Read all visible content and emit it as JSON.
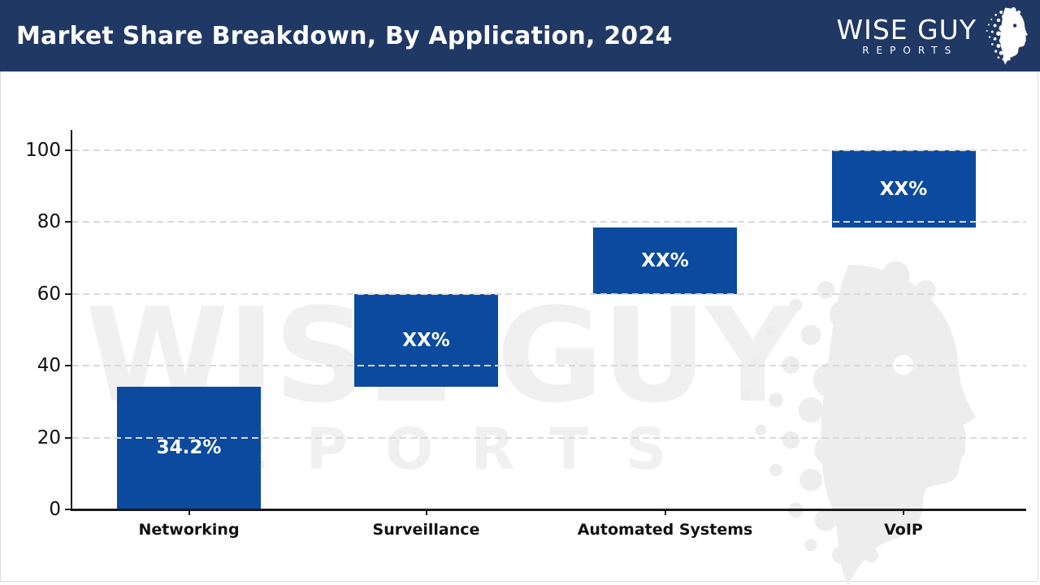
{
  "header": {
    "title": "Market Share Breakdown, By Application, 2024",
    "logo": {
      "line1": "WISE GUY",
      "line2": "REPORTS"
    }
  },
  "watermark": {
    "line1": "WISE GUY",
    "line2": "REPORTS"
  },
  "chart_data": {
    "type": "bar",
    "subtype": "floating-segment-waterfall",
    "title": "Market Share Breakdown, By Application, 2024",
    "categories": [
      "Networking",
      "Surveillance",
      "Automated Systems",
      "VoIP"
    ],
    "segments": [
      {
        "category": "Networking",
        "start": 0,
        "end": 34.2,
        "label": "34.2%"
      },
      {
        "category": "Surveillance",
        "start": 34.2,
        "end": 60,
        "label": "XX%"
      },
      {
        "category": "Automated Systems",
        "start": 60,
        "end": 78.5,
        "label": "XX%"
      },
      {
        "category": "VoIP",
        "start": 78.5,
        "end": 100,
        "label": "XX%"
      }
    ],
    "xlabel": "",
    "ylabel": "",
    "ylim": [
      0,
      100
    ],
    "yticks": [
      0,
      20,
      40,
      60,
      80,
      100
    ],
    "grid": "horizontal dashed gridlines",
    "legend": "none",
    "bar_color": "#0b4a9e",
    "bar_label_color": "#ffffff"
  },
  "colors": {
    "header_bg": "#1f3864",
    "bar": "#0b4a9e",
    "grid": "#d9d9d9",
    "axis": "#1a1a1a",
    "tick_label": "#111111",
    "watermark": "#f0f0f0"
  }
}
